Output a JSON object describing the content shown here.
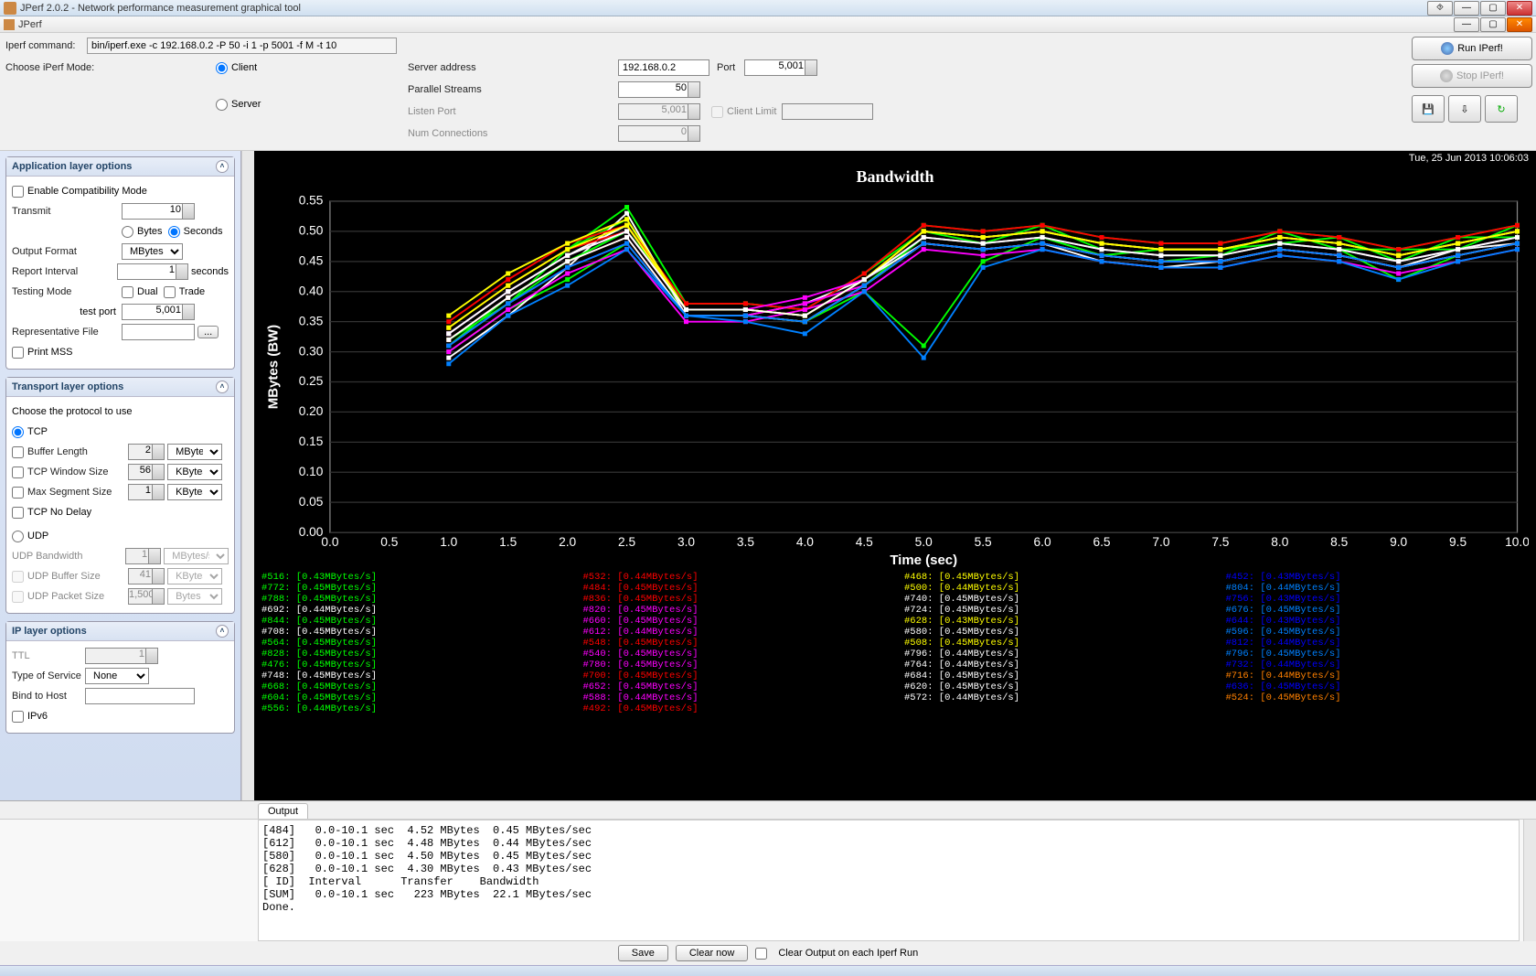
{
  "window": {
    "outer_title": "JPerf 2.0.2 - Network performance measurement graphical tool",
    "inner_title": "JPerf"
  },
  "command": {
    "label": "Iperf command:",
    "value": "bin/iperf.exe -c 192.168.0.2 -P 50 -i 1 -p 5001 -f M -t 10"
  },
  "mode": {
    "label": "Choose iPerf Mode:",
    "client": "Client",
    "server": "Server",
    "selected": "client"
  },
  "server_cfg": {
    "addr_label": "Server address",
    "addr_value": "192.168.0.2",
    "port_label": "Port",
    "port_value": "5,001",
    "parallel_label": "Parallel Streams",
    "parallel_value": "50",
    "listen_label": "Listen Port",
    "listen_value": "5,001",
    "climit_label": "Client Limit",
    "climit_value": "",
    "numconn_label": "Num Connections",
    "numconn_value": "0"
  },
  "buttons": {
    "run": "Run IPerf!",
    "stop": "Stop IPerf!"
  },
  "panels": {
    "app": {
      "title": "Application layer options",
      "compat": "Enable Compatibility Mode",
      "transmit_label": "Transmit",
      "transmit_value": "10",
      "bytes": "Bytes",
      "seconds": "Seconds",
      "outfmt_label": "Output Format",
      "outfmt_value": "MBytes",
      "interval_label": "Report Interval",
      "interval_value": "1",
      "interval_unit": "seconds",
      "testmode_label": "Testing Mode",
      "dual": "Dual",
      "trade": "Trade",
      "testport_label": "test port",
      "testport_value": "5,001",
      "repfile_label": "Representative File",
      "browse": "...",
      "printmss": "Print MSS"
    },
    "transport": {
      "title": "Transport layer options",
      "choose": "Choose the protocol to use",
      "tcp": "TCP",
      "buflen": "Buffer Length",
      "buflen_value": "2",
      "buflen_unit": "MBytes",
      "winsize": "TCP Window Size",
      "winsize_value": "56",
      "winsize_unit": "KBytes",
      "mss": "Max Segment Size",
      "mss_value": "1",
      "mss_unit": "KBytes",
      "nodelay": "TCP No Delay",
      "udp": "UDP",
      "udpbw": "UDP Bandwidth",
      "udpbw_value": "1",
      "udpbw_unit": "MBytes/sec",
      "udpbuf": "UDP Buffer Size",
      "udpbuf_value": "41",
      "udpbuf_unit": "KBytes",
      "udppkt": "UDP Packet Size",
      "udppkt_value": "1,500",
      "udppkt_unit": "Bytes"
    },
    "ip": {
      "title": "IP layer options",
      "ttl": "TTL",
      "ttl_value": "1",
      "tos": "Type of Service",
      "tos_value": "None",
      "bind": "Bind to Host",
      "bind_value": "",
      "ipv6": "IPv6"
    }
  },
  "chart": {
    "title": "Bandwidth",
    "timestamp": "Tue, 25 Jun 2013 10:06:03",
    "type": "line",
    "xlabel": "Time (sec)",
    "ylabel": "MBytes (BW)",
    "background_color": "#000000",
    "grid_color": "#333333",
    "text_color": "#ffffff",
    "xlim": [
      0,
      10
    ],
    "xtick_step": 0.5,
    "ylim": [
      0,
      0.55
    ],
    "ytick_step": 0.05,
    "x_values": [
      1.0,
      1.5,
      2.0,
      2.5,
      3.0,
      3.5,
      4.0,
      4.5,
      5.0,
      5.5,
      6.0,
      6.5,
      7.0,
      7.5,
      8.0,
      8.5,
      9.0,
      9.5,
      10.0
    ],
    "series": [
      {
        "id": "#516",
        "color": "#00ff00",
        "marker": "square",
        "data": [
          0.33,
          0.4,
          0.46,
          0.51,
          0.37,
          0.37,
          0.36,
          0.42,
          0.5,
          0.49,
          0.5,
          0.48,
          0.47,
          0.47,
          0.49,
          0.48,
          0.46,
          0.48,
          0.5
        ]
      },
      {
        "id": "#772",
        "color": "#00ff00",
        "marker": "square",
        "data": [
          0.31,
          0.39,
          0.45,
          0.5,
          0.38,
          0.38,
          0.37,
          0.43,
          0.5,
          0.48,
          0.51,
          0.47,
          0.46,
          0.46,
          0.5,
          0.47,
          0.47,
          0.47,
          0.51
        ]
      },
      {
        "id": "#788",
        "color": "#00ff00",
        "marker": "square",
        "data": [
          0.32,
          0.38,
          0.47,
          0.52,
          0.36,
          0.36,
          0.35,
          0.41,
          0.49,
          0.48,
          0.49,
          0.46,
          0.47,
          0.47,
          0.48,
          0.49,
          0.45,
          0.49,
          0.49
        ]
      },
      {
        "id": "#844",
        "color": "#00ff00",
        "marker": "square",
        "data": [
          0.3,
          0.37,
          0.42,
          0.48,
          0.36,
          0.36,
          0.35,
          0.4,
          0.31,
          0.45,
          0.49,
          0.46,
          0.45,
          0.46,
          0.48,
          0.47,
          0.42,
          0.46,
          0.48
        ]
      },
      {
        "id": "#692",
        "color": "#ffffff",
        "marker": "circle",
        "data": [
          0.29,
          0.36,
          0.44,
          0.53,
          0.36,
          0.36,
          0.38,
          0.42,
          0.48,
          0.47,
          0.48,
          0.45,
          0.44,
          0.45,
          0.47,
          0.46,
          0.44,
          0.47,
          0.48
        ]
      },
      {
        "id": "#708",
        "color": "#ffffff",
        "marker": "circle",
        "data": [
          0.33,
          0.4,
          0.46,
          0.51,
          0.37,
          0.37,
          0.36,
          0.42,
          0.5,
          0.49,
          0.5,
          0.48,
          0.47,
          0.47,
          0.49,
          0.48,
          0.46,
          0.48,
          0.5
        ]
      },
      {
        "id": "#564",
        "color": "#00ff00",
        "marker": "square",
        "data": [
          0.34,
          0.41,
          0.47,
          0.54,
          0.38,
          0.38,
          0.37,
          0.43,
          0.51,
          0.5,
          0.51,
          0.49,
          0.48,
          0.48,
          0.5,
          0.49,
          0.47,
          0.49,
          0.51
        ]
      },
      {
        "id": "#828",
        "color": "#00ff00",
        "marker": "square",
        "data": [
          0.31,
          0.38,
          0.45,
          0.5,
          0.37,
          0.37,
          0.36,
          0.42,
          0.49,
          0.48,
          0.49,
          0.47,
          0.46,
          0.46,
          0.48,
          0.47,
          0.45,
          0.47,
          0.49
        ]
      },
      {
        "id": "#532",
        "color": "#ff0000",
        "marker": "square",
        "data": [
          0.35,
          0.42,
          0.48,
          0.51,
          0.38,
          0.38,
          0.37,
          0.43,
          0.51,
          0.5,
          0.51,
          0.49,
          0.48,
          0.48,
          0.5,
          0.49,
          0.47,
          0.49,
          0.51
        ]
      },
      {
        "id": "#484",
        "color": "#ff0000",
        "marker": "square",
        "data": [
          0.34,
          0.41,
          0.47,
          0.5,
          0.37,
          0.37,
          0.36,
          0.42,
          0.5,
          0.49,
          0.5,
          0.48,
          0.47,
          0.47,
          0.49,
          0.48,
          0.46,
          0.48,
          0.5
        ]
      },
      {
        "id": "#836",
        "color": "#ff0000",
        "marker": "square",
        "data": [
          0.32,
          0.39,
          0.45,
          0.49,
          0.36,
          0.36,
          0.35,
          0.41,
          0.48,
          0.47,
          0.48,
          0.46,
          0.45,
          0.45,
          0.47,
          0.46,
          0.44,
          0.46,
          0.48
        ]
      },
      {
        "id": "#820",
        "color": "#ff00ff",
        "marker": "square",
        "data": [
          0.33,
          0.4,
          0.46,
          0.5,
          0.37,
          0.37,
          0.39,
          0.42,
          0.49,
          0.48,
          0.49,
          0.47,
          0.46,
          0.46,
          0.48,
          0.47,
          0.45,
          0.47,
          0.49
        ]
      },
      {
        "id": "#660",
        "color": "#ff00ff",
        "marker": "square",
        "data": [
          0.31,
          0.38,
          0.44,
          0.48,
          0.36,
          0.36,
          0.38,
          0.41,
          0.48,
          0.47,
          0.48,
          0.46,
          0.45,
          0.45,
          0.47,
          0.46,
          0.44,
          0.46,
          0.48
        ]
      },
      {
        "id": "#612",
        "color": "#ff00ff",
        "marker": "square",
        "data": [
          0.3,
          0.37,
          0.43,
          0.47,
          0.35,
          0.35,
          0.37,
          0.4,
          0.47,
          0.46,
          0.47,
          0.45,
          0.44,
          0.44,
          0.46,
          0.45,
          0.43,
          0.45,
          0.47
        ]
      },
      {
        "id": "#468",
        "color": "#ffff00",
        "marker": "triangle",
        "data": [
          0.36,
          0.43,
          0.48,
          0.52,
          0.37,
          0.37,
          0.36,
          0.42,
          0.5,
          0.49,
          0.5,
          0.48,
          0.47,
          0.47,
          0.49,
          0.48,
          0.46,
          0.48,
          0.5
        ]
      },
      {
        "id": "#500",
        "color": "#ffff00",
        "marker": "triangle",
        "data": [
          0.34,
          0.41,
          0.47,
          0.51,
          0.37,
          0.37,
          0.36,
          0.42,
          0.5,
          0.49,
          0.5,
          0.48,
          0.47,
          0.47,
          0.49,
          0.48,
          0.46,
          0.48,
          0.5
        ]
      },
      {
        "id": "#740",
        "color": "#ffffff",
        "marker": "circle",
        "data": [
          0.32,
          0.39,
          0.45,
          0.49,
          0.36,
          0.36,
          0.35,
          0.41,
          0.48,
          0.47,
          0.48,
          0.46,
          0.45,
          0.45,
          0.47,
          0.46,
          0.44,
          0.46,
          0.48
        ]
      },
      {
        "id": "#724",
        "color": "#ffffff",
        "marker": "circle",
        "data": [
          0.33,
          0.4,
          0.46,
          0.5,
          0.37,
          0.37,
          0.36,
          0.42,
          0.49,
          0.48,
          0.49,
          0.47,
          0.46,
          0.46,
          0.48,
          0.47,
          0.45,
          0.47,
          0.49
        ]
      },
      {
        "id": "#804",
        "color": "#0080ff",
        "marker": "diamond",
        "data": [
          0.31,
          0.38,
          0.44,
          0.48,
          0.36,
          0.36,
          0.35,
          0.41,
          0.48,
          0.47,
          0.48,
          0.46,
          0.45,
          0.45,
          0.47,
          0.46,
          0.44,
          0.46,
          0.48
        ]
      },
      {
        "id": "#676",
        "color": "#0080ff",
        "marker": "diamond",
        "data": [
          0.28,
          0.36,
          0.41,
          0.47,
          0.36,
          0.35,
          0.33,
          0.4,
          0.29,
          0.44,
          0.47,
          0.45,
          0.44,
          0.44,
          0.46,
          0.45,
          0.42,
          0.45,
          0.47
        ]
      }
    ]
  },
  "legend_items": [
    {
      "text": "#516: [0.43MBytes/s]",
      "color": "#00ff00"
    },
    {
      "text": "#532: [0.44MBytes/s]",
      "color": "#ff0000"
    },
    {
      "text": "#468: [0.45MBytes/s]",
      "color": "#ffff00"
    },
    {
      "text": "#452: [0.43MBytes/s]",
      "color": "#0000ff"
    },
    {
      "text": "#772: [0.45MBytes/s]",
      "color": "#00ff00"
    },
    {
      "text": "#484: [0.45MBytes/s]",
      "color": "#ff0000"
    },
    {
      "text": "#500: [0.44MBytes/s]",
      "color": "#ffff00"
    },
    {
      "text": "#804: [0.44MBytes/s]",
      "color": "#0080ff"
    },
    {
      "text": "#788: [0.45MBytes/s]",
      "color": "#00ff00"
    },
    {
      "text": "#836: [0.45MBytes/s]",
      "color": "#ff0000"
    },
    {
      "text": "#740: [0.45MBytes/s]",
      "color": "#ffffff"
    },
    {
      "text": "#756: [0.43MBytes/s]",
      "color": "#0000ff"
    },
    {
      "text": "#692: [0.44MBytes/s]",
      "color": "#ffffff"
    },
    {
      "text": "#820: [0.45MBytes/s]",
      "color": "#ff00ff"
    },
    {
      "text": "#724: [0.45MBytes/s]",
      "color": "#ffffff"
    },
    {
      "text": "#676: [0.45MBytes/s]",
      "color": "#0080ff"
    },
    {
      "text": "#844: [0.45MBytes/s]",
      "color": "#00ff00"
    },
    {
      "text": "#660: [0.45MBytes/s]",
      "color": "#ff00ff"
    },
    {
      "text": "#628: [0.43MBytes/s]",
      "color": "#ffff00"
    },
    {
      "text": "#644: [0.43MBytes/s]",
      "color": "#0000ff"
    },
    {
      "text": "#708: [0.45MBytes/s]",
      "color": "#ffffff"
    },
    {
      "text": "#612: [0.44MBytes/s]",
      "color": "#ff00ff"
    },
    {
      "text": "#580: [0.45MBytes/s]",
      "color": "#ffffff"
    },
    {
      "text": "#596: [0.45MBytes/s]",
      "color": "#0080ff"
    },
    {
      "text": "#564: [0.45MBytes/s]",
      "color": "#00ff00"
    },
    {
      "text": "#548: [0.45MBytes/s]",
      "color": "#ff0000"
    },
    {
      "text": "#508: [0.45MBytes/s]",
      "color": "#ffff00"
    },
    {
      "text": "#812: [0.44MBytes/s]",
      "color": "#0000ff"
    },
    {
      "text": "#828: [0.45MBytes/s]",
      "color": "#00ff00"
    },
    {
      "text": "#540: [0.45MBytes/s]",
      "color": "#ff00ff"
    },
    {
      "text": "#796: [0.44MBytes/s]",
      "color": "#ffffff"
    },
    {
      "text": "#796: [0.45MBytes/s]",
      "color": "#0080ff"
    },
    {
      "text": "#476: [0.45MBytes/s]",
      "color": "#00ff00"
    },
    {
      "text": "#780: [0.45MBytes/s]",
      "color": "#ff00ff"
    },
    {
      "text": "#764: [0.44MBytes/s]",
      "color": "#ffffff"
    },
    {
      "text": "#732: [0.44MBytes/s]",
      "color": "#0000ff"
    },
    {
      "text": "#748: [0.45MBytes/s]",
      "color": "#ffffff"
    },
    {
      "text": "#700: [0.45MBytes/s]",
      "color": "#ff0000"
    },
    {
      "text": "#684: [0.45MBytes/s]",
      "color": "#ffffff"
    },
    {
      "text": "#716: [0.44MBytes/s]",
      "color": "#ff8000"
    },
    {
      "text": "#668: [0.45MBytes/s]",
      "color": "#00ff00"
    },
    {
      "text": "#652: [0.45MBytes/s]",
      "color": "#ff00ff"
    },
    {
      "text": "#620: [0.45MBytes/s]",
      "color": "#ffffff"
    },
    {
      "text": "#636: [0.45MBytes/s]",
      "color": "#0000ff"
    },
    {
      "text": "#604: [0.45MBytes/s]",
      "color": "#00ff00"
    },
    {
      "text": "#588: [0.44MBytes/s]",
      "color": "#ff00ff"
    },
    {
      "text": "#572: [0.44MBytes/s]",
      "color": "#ffffff"
    },
    {
      "text": "#524: [0.45MBytes/s]",
      "color": "#ff8000"
    },
    {
      "text": "#556: [0.44MBytes/s]",
      "color": "#00ff00"
    },
    {
      "text": "#492: [0.45MBytes/s]",
      "color": "#ff0000"
    }
  ],
  "output": {
    "tab": "Output",
    "text": "[484]   0.0-10.1 sec  4.52 MBytes  0.45 MBytes/sec\n[612]   0.0-10.1 sec  4.48 MBytes  0.44 MBytes/sec\n[580]   0.0-10.1 sec  4.50 MBytes  0.45 MBytes/sec\n[628]   0.0-10.1 sec  4.30 MBytes  0.43 MBytes/sec\n[ ID]  Interval      Transfer    Bandwidth\n[SUM]   0.0-10.1 sec   223 MBytes  22.1 MBytes/sec\nDone.",
    "save": "Save",
    "clear": "Clear now",
    "clear_each": "Clear Output on each Iperf Run"
  }
}
